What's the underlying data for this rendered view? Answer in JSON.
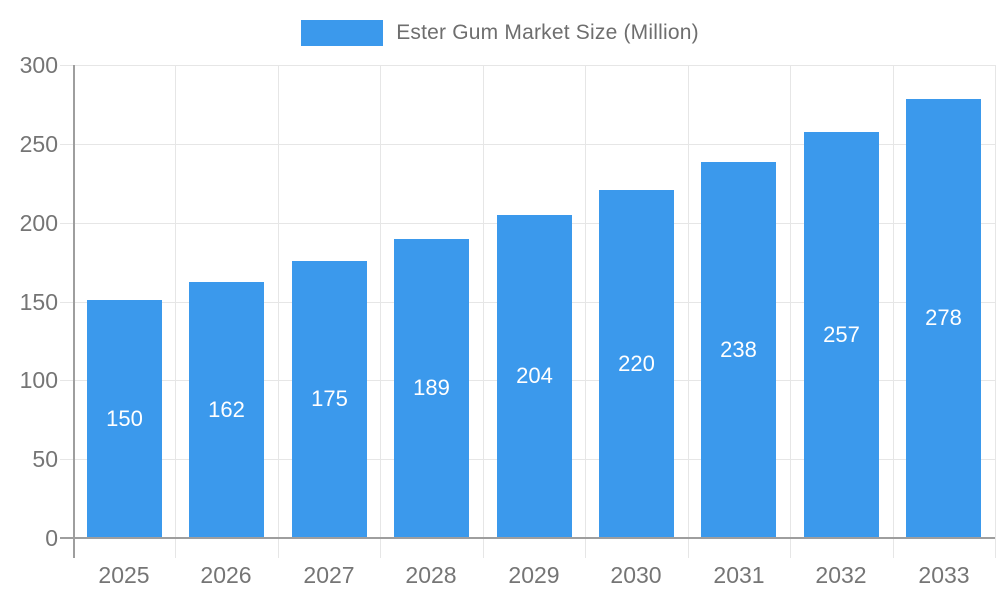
{
  "chart_data": {
    "type": "bar",
    "title": "Ester Gum Market Size (Million)",
    "categories": [
      "2025",
      "2026",
      "2027",
      "2028",
      "2029",
      "2030",
      "2031",
      "2032",
      "2033"
    ],
    "values": [
      150,
      162,
      175,
      189,
      204,
      220,
      238,
      257,
      278
    ],
    "xlabel": "",
    "ylabel": "",
    "ylim": [
      0,
      300
    ],
    "ytick_step": 50,
    "yticks": [
      0,
      50,
      100,
      150,
      200,
      250,
      300
    ],
    "grid": true,
    "legend_position": "top",
    "bar_labels_inside": true,
    "colors": {
      "bar": "#3b99ec",
      "grid": "#e6e6e6",
      "axis": "#9e9e9e",
      "tick_text": "#757575",
      "legend_text": "#6e6e6e",
      "bar_label": "#ffffff",
      "background": "#ffffff"
    }
  }
}
